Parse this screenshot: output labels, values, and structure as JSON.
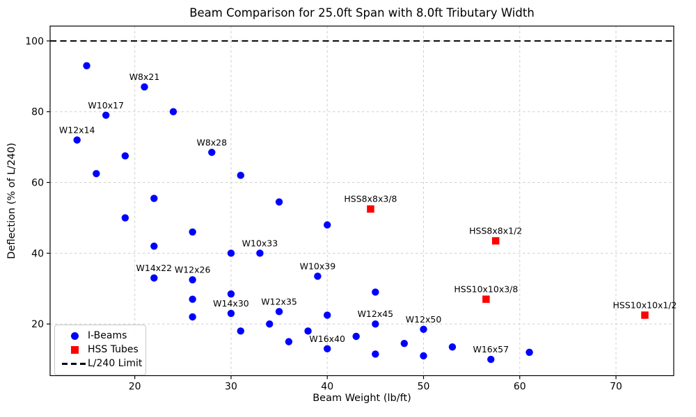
{
  "chart_data": {
    "type": "scatter",
    "title": "Beam Comparison for 25.0ft Span with 8.0ft Tributary Width",
    "xlabel": "Beam Weight (lb/ft)",
    "ylabel": "Deflection (% of L/240)",
    "xlim": [
      11.2,
      76.0
    ],
    "ylim": [
      5.4,
      104.2
    ],
    "x_ticks": [
      20,
      30,
      40,
      50,
      60,
      70
    ],
    "y_ticks": [
      20,
      40,
      60,
      80,
      100
    ],
    "grid": true,
    "grid_color": "#cfcfcf",
    "limit_line": {
      "value": 100,
      "label": "L/240 Limit",
      "color": "#000000",
      "style": "dashed"
    },
    "legend_position": "lower left",
    "series": [
      {
        "name": "I-Beams",
        "marker": "circle",
        "color": "#0000ff",
        "points": [
          {
            "x": 15,
            "y": 93
          },
          {
            "x": 21,
            "y": 87,
            "label": "W8x21"
          },
          {
            "x": 24,
            "y": 80
          },
          {
            "x": 17,
            "y": 79,
            "label": "W10x17"
          },
          {
            "x": 14,
            "y": 72,
            "label": "W12x14"
          },
          {
            "x": 28,
            "y": 68.5,
            "label": "W8x28"
          },
          {
            "x": 19,
            "y": 67.5
          },
          {
            "x": 16,
            "y": 62.5
          },
          {
            "x": 31,
            "y": 62
          },
          {
            "x": 22,
            "y": 55.5
          },
          {
            "x": 35,
            "y": 54.5
          },
          {
            "x": 19,
            "y": 50
          },
          {
            "x": 40,
            "y": 48
          },
          {
            "x": 26,
            "y": 46
          },
          {
            "x": 22,
            "y": 42
          },
          {
            "x": 30,
            "y": 40
          },
          {
            "x": 33,
            "y": 40,
            "label": "W10x33"
          },
          {
            "x": 39,
            "y": 33.5,
            "label": "W10x39"
          },
          {
            "x": 22,
            "y": 33,
            "label": "W14x22"
          },
          {
            "x": 26,
            "y": 32.5,
            "label": "W12x26"
          },
          {
            "x": 45,
            "y": 29
          },
          {
            "x": 30,
            "y": 28.5
          },
          {
            "x": 26,
            "y": 27
          },
          {
            "x": 35,
            "y": 23.5,
            "label": "W12x35"
          },
          {
            "x": 30,
            "y": 23,
            "label": "W14x30"
          },
          {
            "x": 40,
            "y": 22.5
          },
          {
            "x": 26,
            "y": 22
          },
          {
            "x": 34,
            "y": 20
          },
          {
            "x": 45,
            "y": 20,
            "label": "W12x45"
          },
          {
            "x": 50,
            "y": 18.5,
            "label": "W12x50"
          },
          {
            "x": 31,
            "y": 18
          },
          {
            "x": 38,
            "y": 18
          },
          {
            "x": 43,
            "y": 16.5
          },
          {
            "x": 36,
            "y": 15
          },
          {
            "x": 48,
            "y": 14.5
          },
          {
            "x": 53,
            "y": 13.5
          },
          {
            "x": 40,
            "y": 13,
            "label": "W16x40"
          },
          {
            "x": 61,
            "y": 12
          },
          {
            "x": 45,
            "y": 11.5
          },
          {
            "x": 50,
            "y": 11
          },
          {
            "x": 57,
            "y": 10,
            "label": "W16x57"
          }
        ]
      },
      {
        "name": "HSS Tubes",
        "marker": "square",
        "color": "#ff0000",
        "points": [
          {
            "x": 44.5,
            "y": 52.5,
            "label": "HSS8x8x3/8"
          },
          {
            "x": 57.5,
            "y": 43.5,
            "label": "HSS8x8x1/2"
          },
          {
            "x": 56.5,
            "y": 27,
            "label": "HSS10x10x3/8"
          },
          {
            "x": 73,
            "y": 22.5,
            "label": "HSS10x10x1/2"
          }
        ]
      }
    ]
  }
}
